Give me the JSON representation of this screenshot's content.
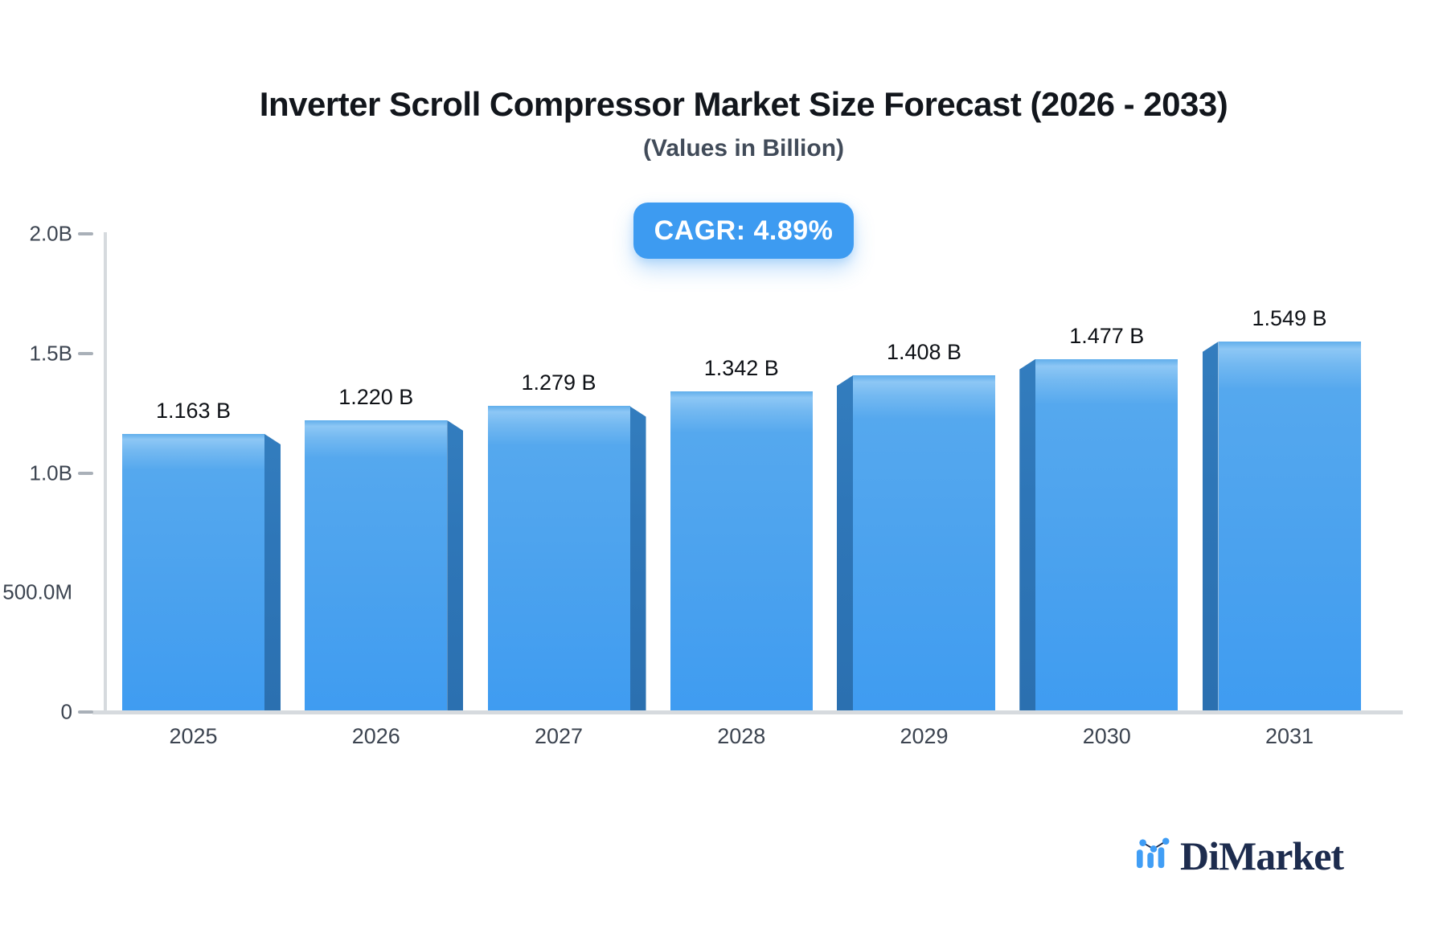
{
  "header": {
    "title": "Inverter Scroll Compressor Market Size Forecast (2026 - 2033)",
    "subtitle": "(Values in Billion)"
  },
  "badge": {
    "label": "CAGR: 4.89%"
  },
  "chart_data": {
    "type": "bar",
    "title": "Inverter Scroll Compressor Market Size Forecast (2026 - 2033)",
    "subtitle": "(Values in Billion)",
    "cagr_label": "CAGR: 4.89%",
    "categories": [
      "2025",
      "2026",
      "2027",
      "2028",
      "2029",
      "2030",
      "2031"
    ],
    "values": [
      1.163,
      1.22,
      1.279,
      1.342,
      1.408,
      1.477,
      1.549
    ],
    "value_labels": [
      "1.163 B",
      "1.220 B",
      "1.279 B",
      "1.342 B",
      "1.408 B",
      "1.477 B",
      "1.549 B"
    ],
    "ylim": [
      0,
      2.0
    ],
    "y_ticks": [
      {
        "label": "2.0B",
        "value": 2.0,
        "has_tick": true
      },
      {
        "label": "1.5B",
        "value": 1.5,
        "has_tick": true
      },
      {
        "label": "1.0B",
        "value": 1.0,
        "has_tick": true
      },
      {
        "label": "500.0M",
        "value": 0.5,
        "has_tick": false
      },
      {
        "label": "0",
        "value": 0.0,
        "has_tick": true
      }
    ],
    "grid": false,
    "legend": false,
    "bar_front_color": "#4BA2EE",
    "bar_side_color": "#2E76B8",
    "badge_color": "#3D9BF1",
    "axis_color": "#D6DADE",
    "label_color": "#3C4450"
  },
  "logo": {
    "text": "DiMarket"
  }
}
